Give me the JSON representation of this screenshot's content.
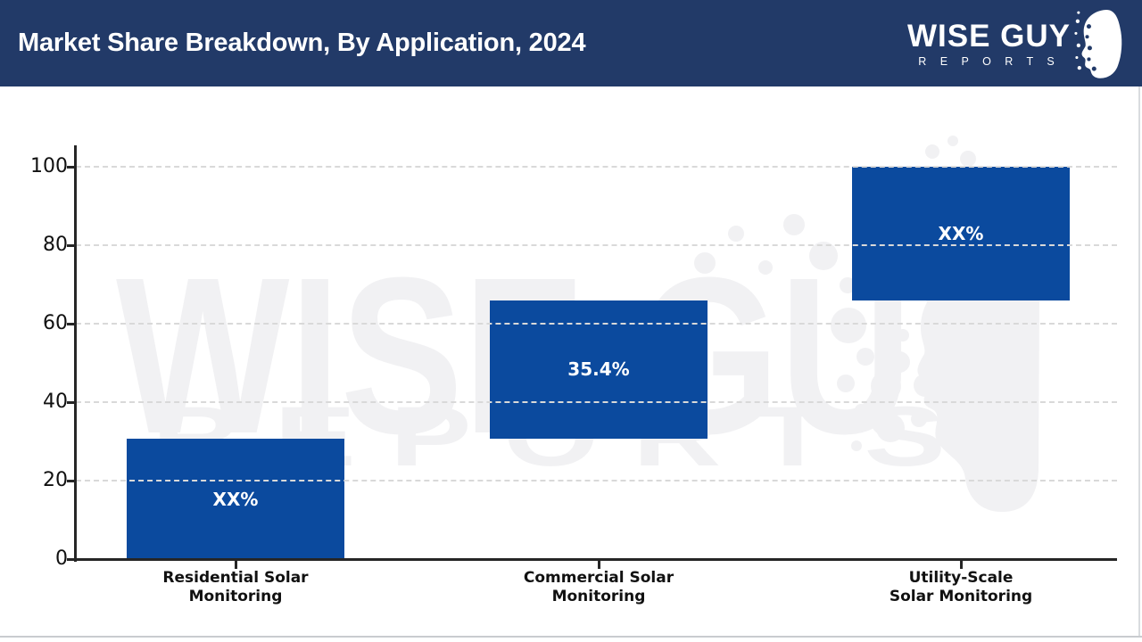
{
  "header": {
    "title": "Market Share Breakdown, By Application, 2024",
    "logo": {
      "line1": "WISE GUY",
      "line2": "R E P O R T S"
    }
  },
  "watermark": {
    "line1": "WISE GUY",
    "line2": "R E P O R T S"
  },
  "colors": {
    "header_bg": "#223a68",
    "bar_fill": "#0b4a9e",
    "bar_label_text": "#ffffff",
    "gridline": "#d9d9d9",
    "axis": "#262626",
    "watermark_fill": "#f1f1f3"
  },
  "chart_data": {
    "type": "bar",
    "subtype": "floating-segment-waterfall",
    "title": "Market Share Breakdown, By Application, 2024",
    "xlabel": "",
    "ylabel": "",
    "ylim": [
      0,
      105
    ],
    "yticks": [
      0,
      20,
      40,
      60,
      80,
      100
    ],
    "grid": "horizontal-dashed",
    "legend": "none",
    "categories": [
      "Residential Solar Monitoring",
      "Commercial Solar Monitoring",
      "Utility-Scale Solar Monitoring"
    ],
    "category_lines": [
      [
        "Residential Solar",
        "Monitoring"
      ],
      [
        "Commercial Solar",
        "Monitoring"
      ],
      [
        "Utility-Scale",
        "Solar Monitoring"
      ]
    ],
    "segments": [
      {
        "category": "Residential Solar Monitoring",
        "start": 0,
        "end": 30.6,
        "label": "XX%"
      },
      {
        "category": "Commercial Solar Monitoring",
        "start": 30.6,
        "end": 66.0,
        "label": "35.4%"
      },
      {
        "category": "Utility-Scale Solar Monitoring",
        "start": 66.0,
        "end": 100.0,
        "label": "XX%"
      }
    ]
  }
}
